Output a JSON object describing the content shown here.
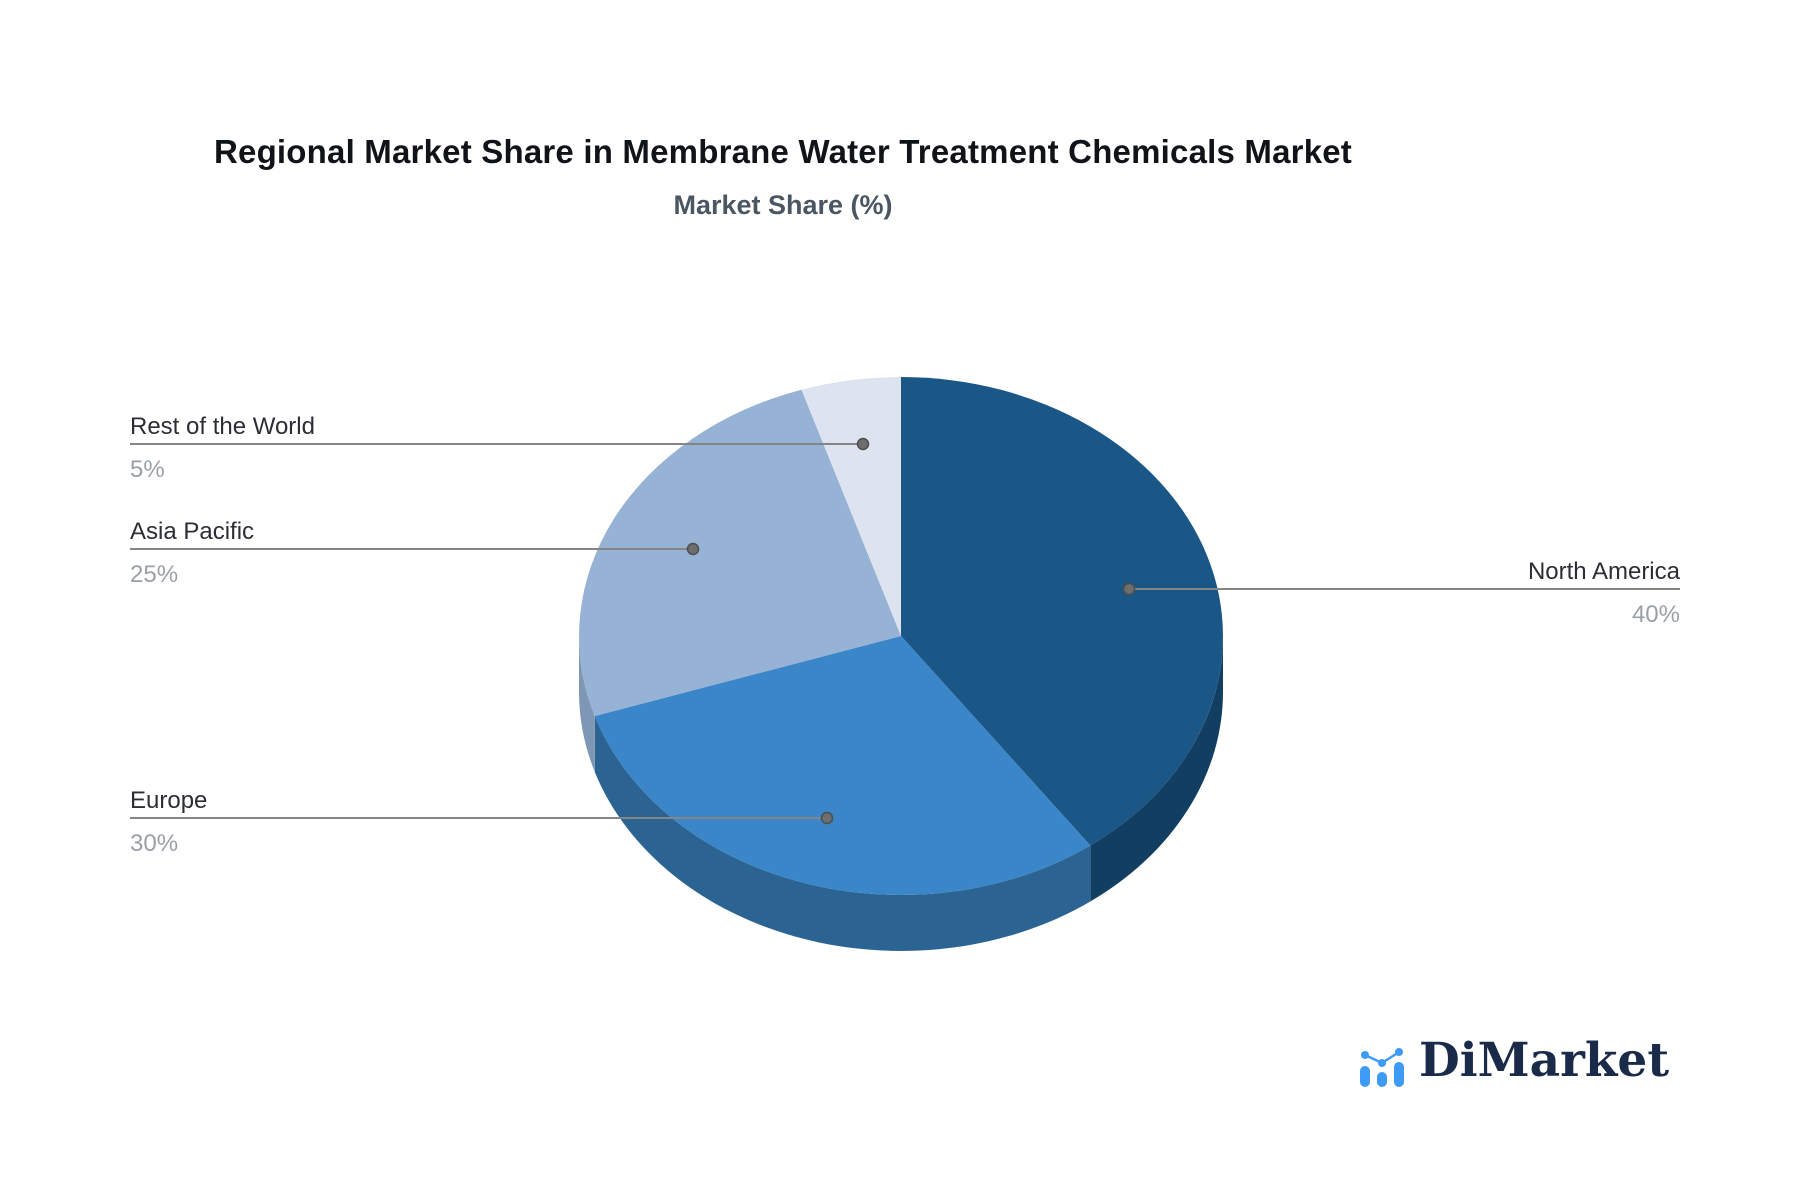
{
  "chart_data": {
    "type": "pie",
    "style": "3d",
    "title": "Regional Market Share in Membrane Water Treatment Chemicals Market",
    "subtitle": "Market Share (%)",
    "unit": "%",
    "direction": "clockwise",
    "start_angle_deg": 0,
    "legend_position": "connected-labels",
    "slices": [
      {
        "label": "North America",
        "value": 40,
        "value_label": "40%",
        "color": "#1A5787",
        "side_color": "#123E62"
      },
      {
        "label": "Europe",
        "value": 30,
        "value_label": "30%",
        "color": "#3B86C8",
        "side_color": "#2B6493"
      },
      {
        "label": "Asia Pacific",
        "value": 25,
        "value_label": "25%",
        "color": "#96B2D4",
        "side_color": "#7E97B4"
      },
      {
        "label": "Rest of the World",
        "value": 5,
        "value_label": "5%",
        "color": "#DEE4EF",
        "side_color": "#BCC6D6"
      }
    ]
  },
  "branding": {
    "logo_text": "DiMarket"
  },
  "colors": {
    "background": "#ffffff",
    "title_text": "#101318",
    "subtitle_text": "#4b5663",
    "label_text": "#2b2f35",
    "value_text": "#9aa0a8",
    "leader_line": "#858585",
    "leader_dot_fill": "#6e6e6e",
    "leader_dot_stroke": "#4d4d4d",
    "logo_text": "#1a2b49",
    "logo_icon": "#3e9bf5"
  }
}
